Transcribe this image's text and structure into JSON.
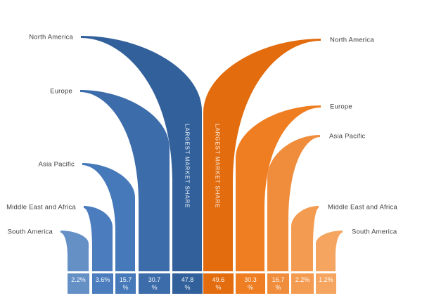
{
  "chart_data": {
    "type": "bar",
    "variant": "mirrored-swoosh-funnel",
    "title": "",
    "center_label": "LARGEST MARKET SHARE",
    "unit": "%",
    "legend": "none",
    "grid": false,
    "categories": [
      "North America",
      "Europe",
      "Asia Pacific",
      "Middle East and Africa",
      "South America"
    ],
    "series": [
      {
        "name": "left",
        "theme": "blue",
        "values": [
          47.8,
          30.7,
          15.7,
          3.6,
          2.2
        ],
        "displays": [
          "47.8\n%",
          "30.7\n%",
          "15.7\n%",
          "3.6%",
          "2.2%"
        ],
        "colors": [
          "#31609B",
          "#3C6CAA",
          "#4679B9",
          "#4B7DBE",
          "#6490C6"
        ]
      },
      {
        "name": "right",
        "theme": "orange",
        "values": [
          49.6,
          30.3,
          16.7,
          2.2,
          1.2
        ],
        "displays": [
          "49.6\n%",
          "30.3\n%",
          "16.7\n%",
          "2.2%",
          "1.2%"
        ],
        "colors": [
          "#E26C0E",
          "#EF7D22",
          "#F08D3C",
          "#F39B50",
          "#F5A55F"
        ]
      }
    ]
  },
  "colors": {
    "background": "#FFFFFF",
    "label_text": "#3F3F3F",
    "value_text": "#FFFFFF"
  }
}
